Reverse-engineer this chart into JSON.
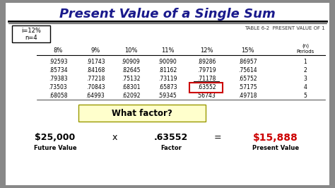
{
  "title": "Present Value of a Single Sum",
  "title_color": "#1a1a8c",
  "table_label": "TABLE 6-2  PRESENT VALUE OF 1",
  "i_label": "i=12%",
  "n_label": "n=4",
  "col_headers": [
    "8%",
    "9%",
    "10%",
    "11%",
    "12%",
    "15%",
    "Periods"
  ],
  "rows": [
    [
      ".92593",
      ".91743",
      ".90909",
      ".90090",
      ".89286",
      ".86957",
      "1"
    ],
    [
      ".85734",
      ".84168",
      ".82645",
      ".81162",
      ".79719",
      ".75614",
      "2"
    ],
    [
      ".79383",
      ".77218",
      ".75132",
      ".73119",
      ".71178",
      ".65752",
      "3"
    ],
    [
      ".73503",
      ".70843",
      ".68301",
      ".65873",
      ".63552",
      ".57175",
      "4"
    ],
    [
      ".68058",
      ".64993",
      ".62092",
      ".59345",
      ".56743",
      ".49718",
      "5"
    ]
  ],
  "highlighted_row": 3,
  "highlighted_col": 4,
  "underlined_row": 2,
  "underlined_col": 4,
  "what_factor_text": "What factor?",
  "what_factor_bg": "#ffffcc",
  "formula_fv": "$25,000",
  "formula_x": "x",
  "formula_factor": ".63552",
  "formula_eq": "=",
  "formula_pv": "$15,888",
  "formula_fv_label": "Future Value",
  "formula_factor_label": "Factor",
  "formula_pv_label": "Present Value",
  "formula_pv_color": "#cc0000"
}
